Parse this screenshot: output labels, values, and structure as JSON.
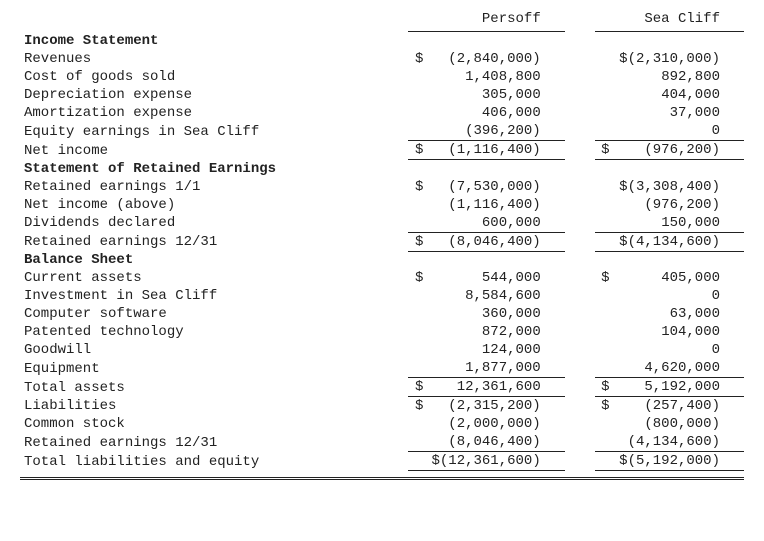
{
  "columns": {
    "c1": "Persoff",
    "c2": "Sea Cliff"
  },
  "sections": {
    "is": {
      "title": "Income Statement",
      "rows": {
        "rev": {
          "label": "Revenues",
          "d1": "$",
          "v1": "(2,840,000)",
          "d2": "",
          "v2": "$(2,310,000)"
        },
        "cogs": {
          "label": "Cost of goods sold",
          "d1": "",
          "v1": "1,408,800",
          "d2": "",
          "v2": "892,800"
        },
        "dep": {
          "label": "Depreciation expense",
          "d1": "",
          "v1": "305,000",
          "d2": "",
          "v2": "404,000"
        },
        "amt": {
          "label": "Amortization expense",
          "d1": "",
          "v1": "406,000",
          "d2": "",
          "v2": "37,000"
        },
        "eq": {
          "label": "Equity earnings in Sea Cliff",
          "d1": "",
          "v1": "(396,200)",
          "d2": "",
          "v2": "0"
        },
        "ni": {
          "label": "Net income",
          "d1": "$",
          "v1": "(1,116,400)",
          "d2": "$",
          "v2": "(976,200)"
        }
      }
    },
    "re": {
      "title": "Statement of Retained Earnings",
      "rows": {
        "re11": {
          "label": "Retained earnings 1/1",
          "d1": "$",
          "v1": "(7,530,000)",
          "d2": "",
          "v2": "$(3,308,400)"
        },
        "nia": {
          "label": "Net income (above)",
          "d1": "",
          "v1": "(1,116,400)",
          "d2": "",
          "v2": "(976,200)"
        },
        "div": {
          "label": "Dividends declared",
          "d1": "",
          "v1": "600,000",
          "d2": "",
          "v2": "150,000"
        },
        "re1231": {
          "label": "Retained earnings 12/31",
          "d1": "$",
          "v1": "(8,046,400)",
          "d2": "",
          "v2": "$(4,134,600)"
        }
      }
    },
    "bs": {
      "title": "Balance Sheet",
      "rows": {
        "ca": {
          "label": "Current assets",
          "d1": "$",
          "v1": "544,000",
          "d2": "$",
          "v2": "405,000"
        },
        "inv": {
          "label": "Investment in Sea Cliff",
          "d1": "",
          "v1": "8,584,600",
          "d2": "",
          "v2": "0"
        },
        "sw": {
          "label": "Computer software",
          "d1": "",
          "v1": "360,000",
          "d2": "",
          "v2": "63,000"
        },
        "pat": {
          "label": "Patented technology",
          "d1": "",
          "v1": "872,000",
          "d2": "",
          "v2": "104,000"
        },
        "gw": {
          "label": "Goodwill",
          "d1": "",
          "v1": "124,000",
          "d2": "",
          "v2": "0"
        },
        "eqp": {
          "label": "Equipment",
          "d1": "",
          "v1": "1,877,000",
          "d2": "",
          "v2": "4,620,000"
        },
        "ta": {
          "label": "Total assets",
          "d1": "$",
          "v1": "12,361,600",
          "d2": "$",
          "v2": "5,192,000"
        },
        "liab": {
          "label": "Liabilities",
          "d1": "$",
          "v1": "(2,315,200)",
          "d2": "$",
          "v2": "(257,400)"
        },
        "cs": {
          "label": "Common stock",
          "d1": "",
          "v1": "(2,000,000)",
          "d2": "",
          "v2": "(800,000)"
        },
        "rebs": {
          "label": "Retained earnings 12/31",
          "d1": "",
          "v1": "(8,046,400)",
          "d2": "",
          "v2": "(4,134,600)"
        },
        "tle": {
          "label": "Total liabilities and equity",
          "d1": "",
          "v1": "$(12,361,600)",
          "d2": "",
          "v2": "$(5,192,000)"
        }
      }
    }
  },
  "style": {
    "font_family": "Courier New",
    "font_size_pt": 11,
    "text_color": "#222222",
    "background_color": "#ffffff",
    "rule_color": "#222222"
  }
}
